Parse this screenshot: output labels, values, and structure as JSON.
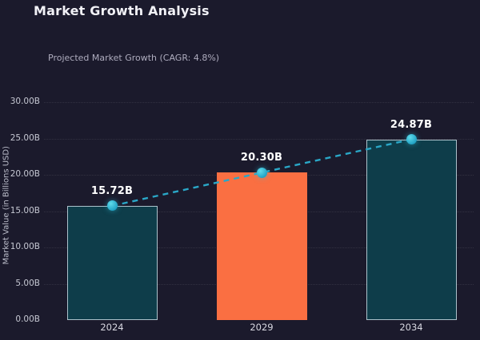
{
  "chart_data": {
    "type": "bar",
    "title": "Market Growth Analysis",
    "subtitle": "Projected Market Growth (CAGR: 4.8%)",
    "categories": [
      "2024",
      "2029",
      "2034"
    ],
    "values": [
      15.72,
      20.3,
      24.87
    ],
    "value_labels": [
      "15.72B",
      "20.30B",
      "24.87B"
    ],
    "xlabel": "",
    "ylabel": "Market Value (in Billions USD)",
    "ylim": [
      0,
      30
    ],
    "yticks": [
      0,
      5,
      10,
      15,
      20,
      25,
      30
    ],
    "ytick_labels": [
      "0.00B",
      "5.00B",
      "10.00B",
      "15.00B",
      "20.00B",
      "25.00B",
      "30.00B"
    ],
    "grid": "horizontal-dotted",
    "legend": "none",
    "overlay_line": "dashed trend line connecting bar tops with circular markers",
    "bar_colors": [
      "#0e3d4a",
      "#fa6f42",
      "#0e3d4a"
    ],
    "bar_border_colors": [
      "rgba(213,227,235,0.8)",
      "",
      "rgba(213,227,235,0.8)"
    ],
    "colors": {
      "background": "#1b1a2c",
      "bar_teal": "#0e3d4a",
      "bar_orange": "#fa6f42",
      "trend_line": "#2aa7c7",
      "marker": "#2fbfd9",
      "title_text": "#f1f1f6",
      "subtitle_text": "#aeacbe",
      "axis_text": "#c6c8d3"
    }
  }
}
